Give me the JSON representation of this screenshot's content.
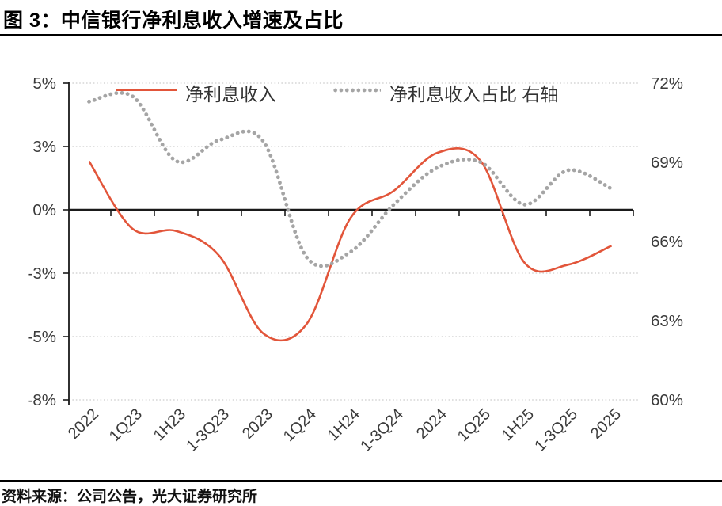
{
  "header": {
    "title": "图 3：中信银行净利息收入增速及占比"
  },
  "footer": {
    "source": "资料来源：公司公告，光大证券研究所"
  },
  "colors": {
    "series_red": "#E2553A",
    "series_gray": "#A5A5A5",
    "gridline": "#CDCDCD",
    "axis_line": "#1A1A1A",
    "tick_label": "#3A3A3A",
    "title_black": "#000000"
  },
  "legend": {
    "items": [
      {
        "label": "净利息收入",
        "swatch": "solid-line"
      },
      {
        "label": "净利息收入占比 右轴",
        "swatch": "dotted-line"
      }
    ]
  },
  "chart_data": {
    "type": "line",
    "title": "图 3：中信银行净利息收入增速及占比",
    "categories": [
      "2022",
      "1Q23",
      "1H23",
      "1-3Q23",
      "2023",
      "1Q24",
      "1H24",
      "1-3Q24",
      "2024",
      "1Q25",
      "1H25",
      "1-3Q25",
      "2025"
    ],
    "series": [
      {
        "name": "净利息收入",
        "axis": "left",
        "line_style": "solid",
        "color": "#E2553A",
        "unit": "%",
        "values": [
          2.3,
          -0.9,
          -1.0,
          -2.2,
          -4.9,
          -4.6,
          -0.4,
          0.9,
          2.7,
          2.3,
          -2.5,
          -2.6,
          -1.7
        ]
      },
      {
        "name": "净利息收入占比 右轴",
        "axis": "right",
        "line_style": "dotted",
        "color": "#A5A5A5",
        "unit": "%",
        "values": [
          71.3,
          71.5,
          69.05,
          69.85,
          69.8,
          65.4,
          65.6,
          67.4,
          68.8,
          69.0,
          67.4,
          68.7,
          68.0
        ]
      }
    ],
    "left_axis": {
      "tick_labels": [
        "5%",
        "3%",
        "0%",
        "-3%",
        "-5%",
        "-8%"
      ],
      "tick_values": [
        5,
        3,
        0,
        -3,
        -5,
        -8
      ],
      "range_note": "non-uniform tick values, evenly spaced gridlines"
    },
    "right_axis": {
      "tick_labels": [
        "72%",
        "69%",
        "66%",
        "63%",
        "60%"
      ],
      "tick_values": [
        72,
        69,
        66,
        63,
        60
      ]
    },
    "grid": true,
    "legend_position": "top",
    "x_label_rotation_deg": -45
  }
}
